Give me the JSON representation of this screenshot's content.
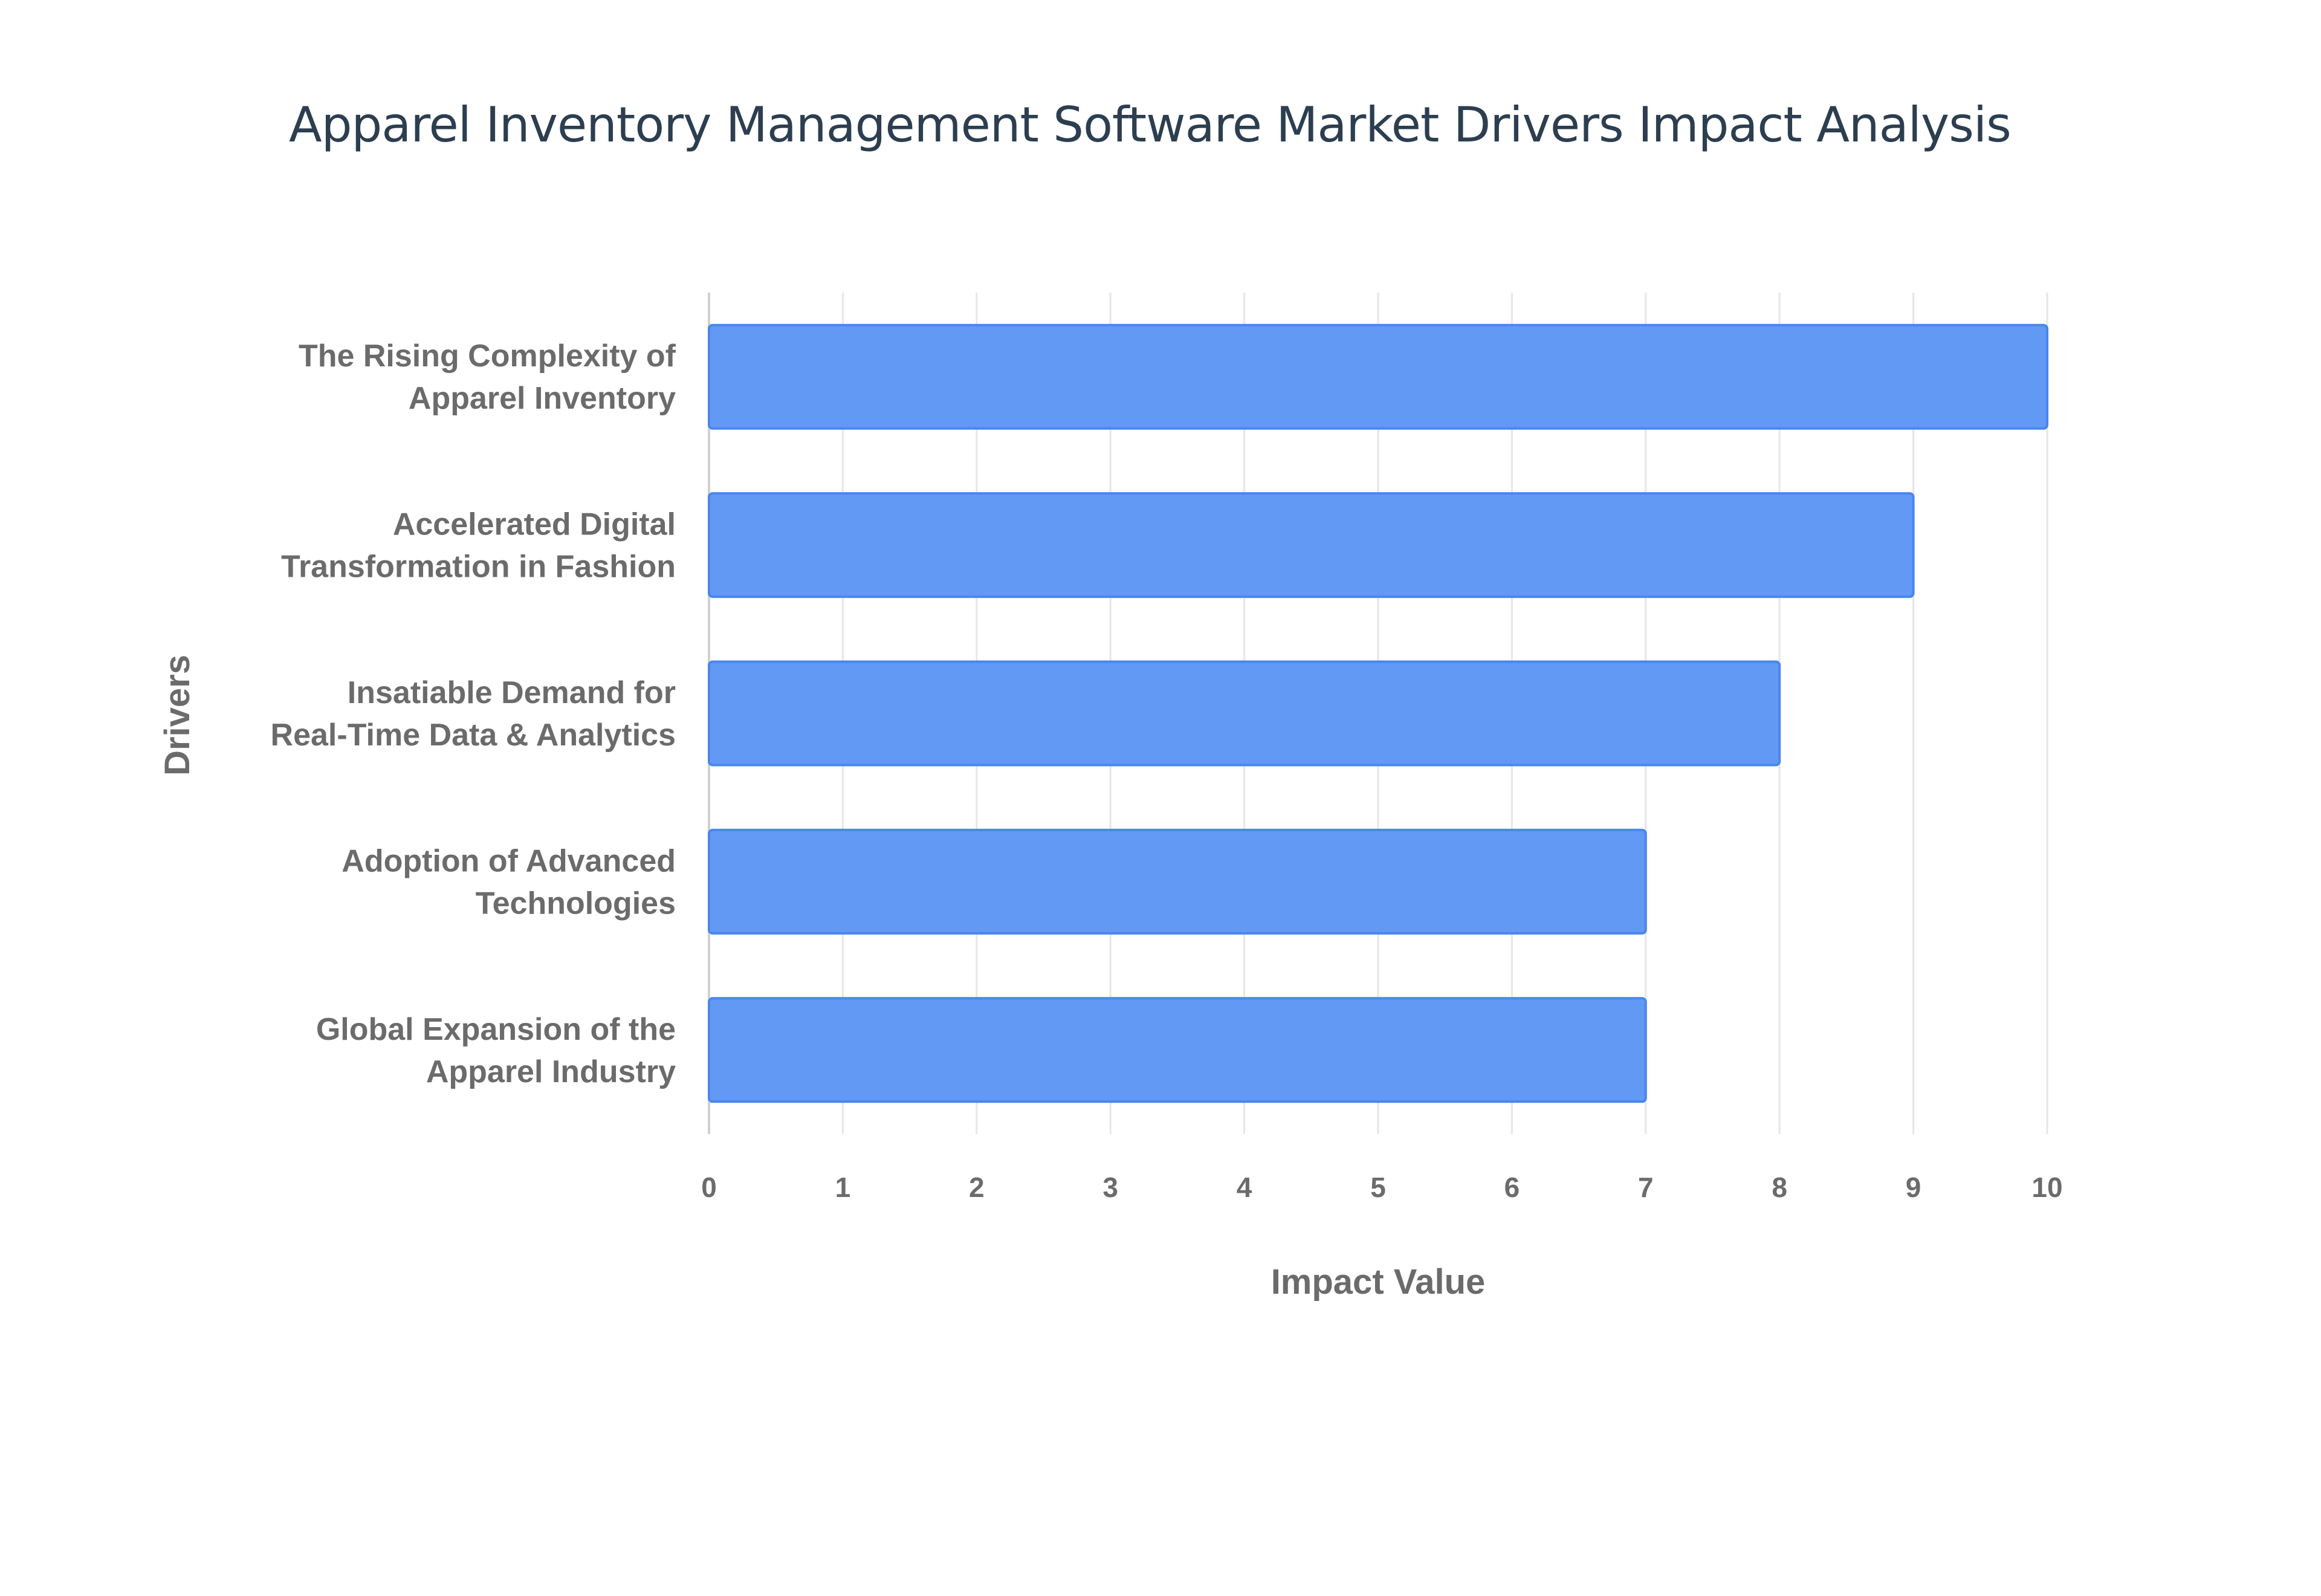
{
  "chart_data": {
    "type": "bar",
    "orientation": "horizontal",
    "title": "Apparel Inventory Management Software Market Drivers Impact Analysis",
    "xlabel": "Impact Value",
    "ylabel": "Drivers",
    "xlim": [
      0,
      10
    ],
    "x_ticks": [
      "0",
      "1",
      "2",
      "3",
      "4",
      "5",
      "6",
      "7",
      "8",
      "9",
      "10"
    ],
    "grid": true,
    "bar_color": "#6199f5",
    "bar_edge_color": "#4a86ec",
    "categories": [
      [
        "The Rising Complexity of",
        "Apparel Inventory"
      ],
      [
        "Accelerated Digital",
        "Transformation in Fashion"
      ],
      [
        "Insatiable Demand for",
        "Real-Time Data & Analytics"
      ],
      [
        "Adoption of Advanced",
        "Technologies"
      ],
      [
        "Global Expansion of the",
        "Apparel Industry"
      ]
    ],
    "values": [
      10,
      9,
      8,
      7,
      7
    ]
  }
}
